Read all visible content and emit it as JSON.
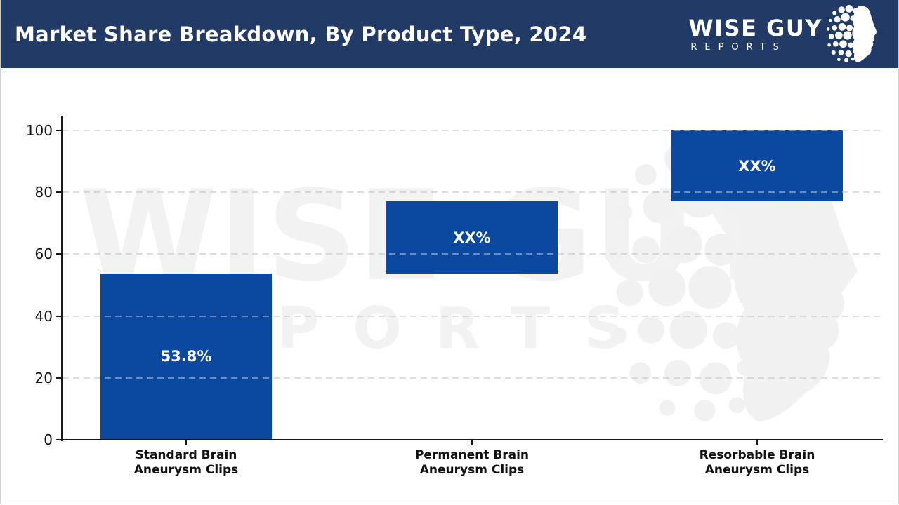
{
  "header": {
    "title": "Market Share Breakdown, By Product Type, 2024",
    "logo": {
      "primary": "WISE GUY",
      "secondary": "REPORTS"
    },
    "bg_color": "#213a66",
    "text_color": "#ffffff"
  },
  "watermark": {
    "primary": "WISE GUY",
    "secondary": "REPORTS",
    "color": "#f2f2f2"
  },
  "chart_data": {
    "type": "bar",
    "subtype": "stacked-waterfall",
    "title": "Market Share Breakdown, By Product Type, 2024",
    "categories": [
      "Standard Brain Aneurysm Clips",
      "Permanent Brain Aneurysm Clips",
      "Resorbable Brain Aneurysm Clips"
    ],
    "category_label_lines": [
      [
        "Standard Brain",
        "Aneurysm Clips"
      ],
      [
        "Permanent Brain",
        "Aneurysm Clips"
      ],
      [
        "Resorbable Brain",
        "Aneurysm Clips"
      ]
    ],
    "bars": [
      {
        "category": "Standard Brain Aneurysm Clips",
        "start": 0,
        "end": 53.8,
        "label": "53.8%"
      },
      {
        "category": "Permanent Brain Aneurysm Clips",
        "start": 53.8,
        "end": 77,
        "label": "XX%"
      },
      {
        "category": "Resorbable Brain Aneurysm Clips",
        "start": 77,
        "end": 100,
        "label": "XX%"
      }
    ],
    "yticks": [
      0,
      20,
      40,
      60,
      80,
      100
    ],
    "ylim": [
      0,
      105
    ],
    "xlabel": "",
    "ylabel": "",
    "grid": "horizontal-dashed",
    "legend": "none",
    "bar_color": "#0b489f",
    "bar_label_color": "#ffffff",
    "axis_color": "#1a1a1a"
  }
}
